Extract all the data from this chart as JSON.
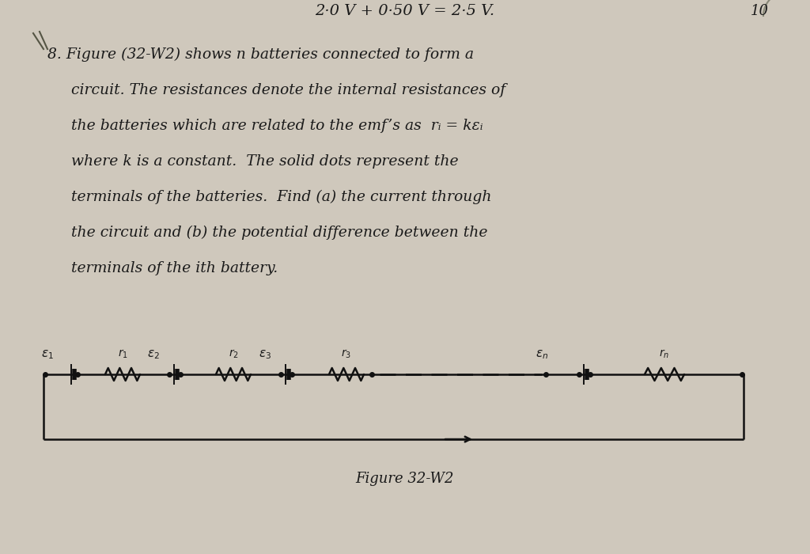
{
  "bg_color": "#cfc8bc",
  "text_color": "#1a1a1a",
  "title": "Figure 32-W2",
  "top_text": "2·0 V + 0·50 V = 2·5 V.",
  "line1": "8. Figure (32-W2) shows n batteries connected to form a",
  "line2": "    circuit. The resistances denote the internal resistances of",
  "line3": "    the batteries which are related to the emf’s as  rᵢ = kεᵢ",
  "line4": "    where k is a constant. The solid dots represent the",
  "line5": "    terminals of the batteries. Find (a) the current through",
  "line6": "    the circuit and (b) the potential difference between the",
  "line7": "    terminals of the ith battery.",
  "line_color": "#111111",
  "dot_color": "#111111"
}
